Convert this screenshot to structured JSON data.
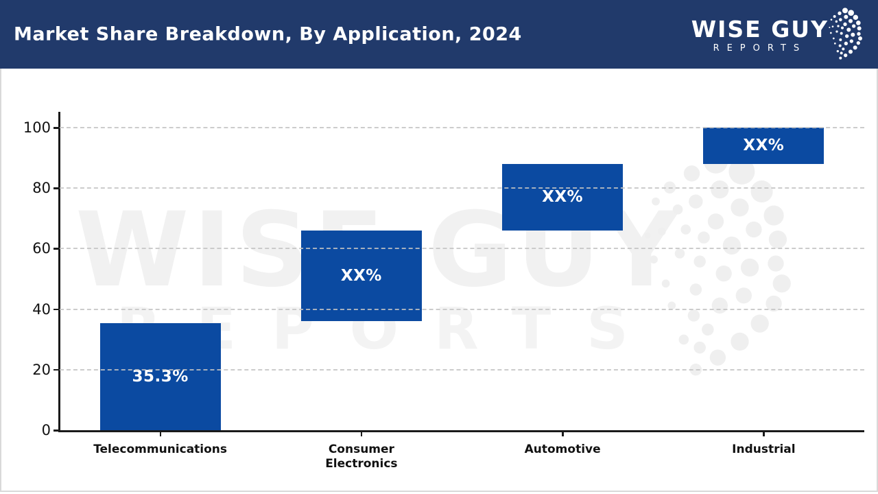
{
  "header": {
    "title": "Market Share Breakdown, By Application, 2024",
    "logo": {
      "wordmark": "WISE GUY",
      "subtitle": "REPORTS"
    }
  },
  "watermark": {
    "line1": "WISE GUY",
    "line2": "REPORTS"
  },
  "chart_data": {
    "type": "bar",
    "subtype": "floating-waterfall-breakdown",
    "title": "Market Share Breakdown, By Application, 2024",
    "categories": [
      "Telecommunications",
      "Consumer\nElectronics",
      "Automotive",
      "Industrial"
    ],
    "segments": [
      {
        "category": "Telecommunications",
        "start": 0,
        "end": 35.3,
        "label": "35.3%"
      },
      {
        "category": "Consumer\nElectronics",
        "start": 36,
        "end": 66,
        "label": "XX%"
      },
      {
        "category": "Automotive",
        "start": 66,
        "end": 88,
        "label": "XX%"
      },
      {
        "category": "Industrial",
        "start": 88,
        "end": 100,
        "label": "XX%"
      }
    ],
    "yticks": [
      0,
      20,
      40,
      60,
      80,
      100
    ],
    "ylim": [
      0,
      105
    ],
    "xlabel": "",
    "ylabel": "",
    "grid": "horizontal-dashed",
    "legend": "none",
    "bar_color": "#0b4aa1",
    "bar_label_color": "#ffffff",
    "axis_color": "#1a1a1a",
    "gridline_color": "#c9c9c9",
    "header_background": "#213a6b",
    "watermark_color": "#f1f1f1"
  }
}
